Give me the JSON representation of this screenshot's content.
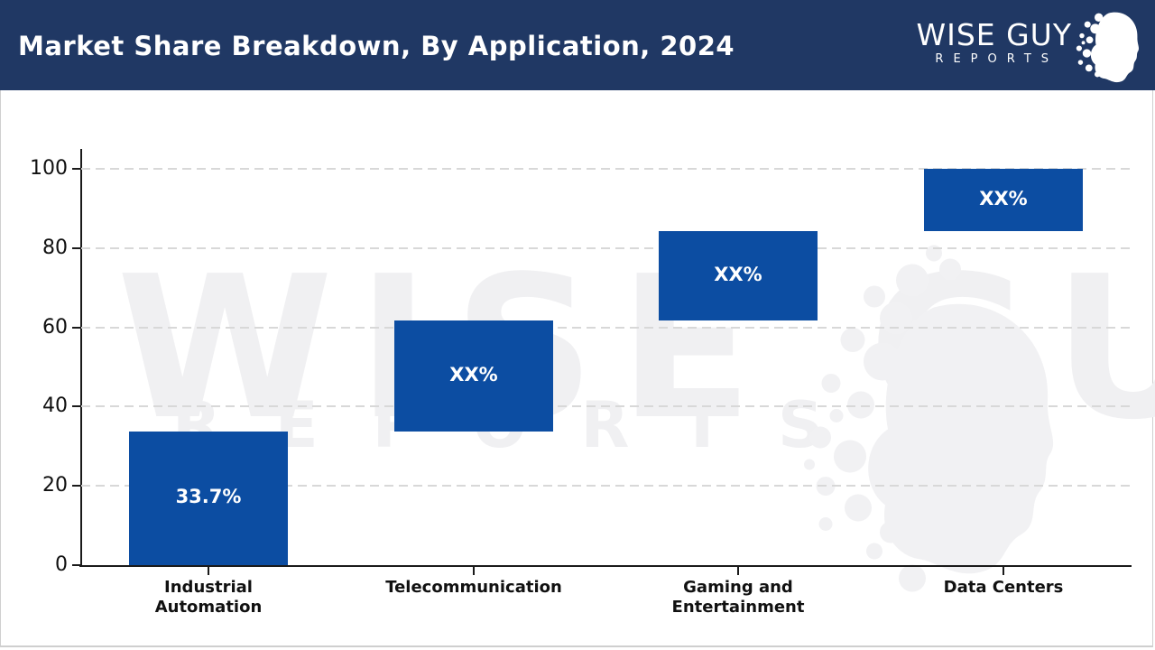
{
  "header": {
    "title": "Market Share Breakdown, By Application, 2024",
    "logo_line1": "WISE GUY",
    "logo_line2": "REPORTS",
    "bg_color": "#203864"
  },
  "watermark": {
    "line1": "WISE GUY",
    "line2": "REPORTS"
  },
  "chart_data": {
    "type": "bar",
    "subtype": "waterfall",
    "title": "Market Share Breakdown, By Application, 2024",
    "categories": [
      "Industrial Automation",
      "Telecommunication",
      "Gaming and Entertainment",
      "Data Centers"
    ],
    "category_label_lines": [
      [
        "Industrial",
        "Automation"
      ],
      [
        "Telecommunication"
      ],
      [
        "Gaming and",
        "Entertainment"
      ],
      [
        "Data Centers"
      ]
    ],
    "segments": [
      {
        "category": "Industrial Automation",
        "start": 0,
        "end": 33.7,
        "label": "33.7%"
      },
      {
        "category": "Telecommunication",
        "start": 33.7,
        "end": 61.7,
        "label": "XX%"
      },
      {
        "category": "Gaming and Entertainment",
        "start": 61.7,
        "end": 84.2,
        "label": "XX%"
      },
      {
        "category": "Data Centers",
        "start": 84.2,
        "end": 100,
        "label": "XX%"
      }
    ],
    "yticks": [
      0,
      20,
      40,
      60,
      80,
      100
    ],
    "ylim": [
      0,
      105
    ],
    "xlabel": "",
    "ylabel": "",
    "grid": "horizontal-dashed",
    "legend": "none",
    "bar_color": "#0C4DA2",
    "bar_label_color": "#ffffff",
    "axis_color": "#1a1a1a",
    "gridline_color": "#d8d8d8"
  }
}
